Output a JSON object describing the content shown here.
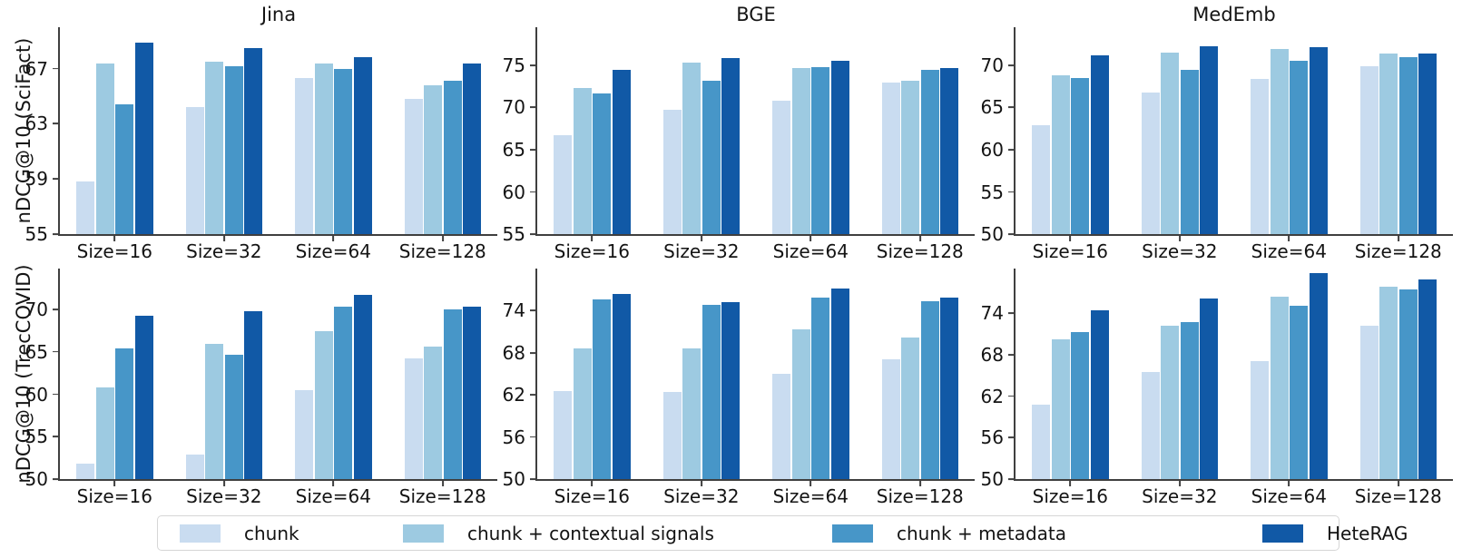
{
  "figure": {
    "column_titles": [
      "Jina",
      "BGE",
      "MedEmb"
    ],
    "row_ylabels": [
      "nDCG@10 (SciFact)",
      "nDCG@10 (TrecCOVID)"
    ]
  },
  "legend": {
    "position": "bottom",
    "items": [
      {
        "label": "chunk",
        "color": "#c9dcf0"
      },
      {
        "label": "chunk + contextual signals",
        "color": "#9dcae1"
      },
      {
        "label": "chunk + metadata",
        "color": "#4796c8"
      },
      {
        "label": "HeteRAG",
        "color": "#1159a6"
      }
    ]
  },
  "chart_data": [
    {
      "id": "jina-scifact",
      "type": "bar",
      "title": "Jina",
      "ylabel": "nDCG@10 (SciFact)",
      "grid": false,
      "categories": [
        "Size=16",
        "Size=32",
        "Size=64",
        "Size=128"
      ],
      "yticks": [
        55,
        59,
        63,
        67
      ],
      "ylim": [
        55,
        70
      ],
      "series": [
        {
          "name": "chunk",
          "values": [
            58.8,
            64.2,
            66.3,
            64.8
          ]
        },
        {
          "name": "chunk + contextual signals",
          "values": [
            67.4,
            67.5,
            67.4,
            65.8
          ]
        },
        {
          "name": "chunk + metadata",
          "values": [
            64.4,
            67.2,
            67.0,
            66.1
          ]
        },
        {
          "name": "HeteRAG",
          "values": [
            68.9,
            68.5,
            67.8,
            67.4
          ]
        }
      ]
    },
    {
      "id": "bge-scifact",
      "type": "bar",
      "title": "BGE",
      "ylabel": "",
      "grid": false,
      "categories": [
        "Size=16",
        "Size=32",
        "Size=64",
        "Size=128"
      ],
      "yticks": [
        55,
        60,
        65,
        70,
        75
      ],
      "ylim": [
        55,
        79.5
      ],
      "series": [
        {
          "name": "chunk",
          "values": [
            66.7,
            69.7,
            70.8,
            73.0
          ]
        },
        {
          "name": "chunk + contextual signals",
          "values": [
            72.3,
            75.3,
            74.7,
            73.2
          ]
        },
        {
          "name": "chunk + metadata",
          "values": [
            71.7,
            73.2,
            74.8,
            74.5
          ]
        },
        {
          "name": "HeteRAG",
          "values": [
            74.5,
            75.8,
            75.5,
            74.7
          ]
        }
      ]
    },
    {
      "id": "medemb-scifact",
      "type": "bar",
      "title": "MedEmb",
      "ylabel": "",
      "grid": false,
      "categories": [
        "Size=16",
        "Size=32",
        "Size=64",
        "Size=128"
      ],
      "yticks": [
        50,
        55,
        60,
        65,
        70
      ],
      "ylim": [
        50,
        74.5
      ],
      "series": [
        {
          "name": "chunk",
          "values": [
            62.9,
            66.8,
            68.4,
            69.9
          ]
        },
        {
          "name": "chunk + contextual signals",
          "values": [
            68.8,
            71.5,
            71.9,
            71.4
          ]
        },
        {
          "name": "chunk + metadata",
          "values": [
            68.5,
            69.5,
            70.5,
            71.0
          ]
        },
        {
          "name": "HeteRAG",
          "values": [
            71.2,
            72.2,
            72.1,
            71.4
          ]
        }
      ]
    },
    {
      "id": "jina-treccovid",
      "type": "bar",
      "title": "",
      "ylabel": "nDCG@10 (TrecCOVID)",
      "grid": false,
      "categories": [
        "Size=16",
        "Size=32",
        "Size=64",
        "Size=128"
      ],
      "yticks": [
        50,
        55,
        60,
        65,
        70
      ],
      "ylim": [
        50,
        74.8
      ],
      "series": [
        {
          "name": "chunk",
          "values": [
            51.8,
            52.9,
            60.5,
            64.2
          ]
        },
        {
          "name": "chunk + contextual signals",
          "values": [
            60.8,
            65.9,
            67.4,
            65.6
          ]
        },
        {
          "name": "chunk + metadata",
          "values": [
            65.4,
            64.6,
            70.3,
            70.0
          ]
        },
        {
          "name": "HeteRAG",
          "values": [
            69.3,
            69.8,
            71.7,
            70.3
          ]
        }
      ]
    },
    {
      "id": "bge-treccovid",
      "type": "bar",
      "title": "",
      "ylabel": "",
      "grid": false,
      "categories": [
        "Size=16",
        "Size=32",
        "Size=64",
        "Size=128"
      ],
      "yticks": [
        50,
        56,
        62,
        68,
        74
      ],
      "ylim": [
        50,
        80
      ],
      "series": [
        {
          "name": "chunk",
          "values": [
            62.5,
            62.4,
            65.0,
            67.1
          ]
        },
        {
          "name": "chunk + contextual signals",
          "values": [
            68.6,
            68.6,
            71.3,
            70.2
          ]
        },
        {
          "name": "chunk + metadata",
          "values": [
            75.6,
            74.8,
            75.9,
            75.4
          ]
        },
        {
          "name": "HeteRAG",
          "values": [
            76.4,
            75.2,
            77.2,
            75.9
          ]
        }
      ]
    },
    {
      "id": "medemb-treccovid",
      "type": "bar",
      "title": "",
      "ylabel": "",
      "grid": false,
      "categories": [
        "Size=16",
        "Size=32",
        "Size=64",
        "Size=128"
      ],
      "yticks": [
        50,
        56,
        62,
        68,
        74
      ],
      "ylim": [
        50,
        80.5
      ],
      "series": [
        {
          "name": "chunk",
          "values": [
            60.8,
            65.5,
            67.1,
            72.2
          ]
        },
        {
          "name": "chunk + contextual signals",
          "values": [
            70.3,
            72.2,
            76.4,
            77.9
          ]
        },
        {
          "name": "chunk + metadata",
          "values": [
            71.3,
            72.8,
            75.1,
            77.5
          ]
        },
        {
          "name": "HeteRAG",
          "values": [
            74.5,
            76.2,
            79.8,
            78.9
          ]
        }
      ]
    }
  ]
}
